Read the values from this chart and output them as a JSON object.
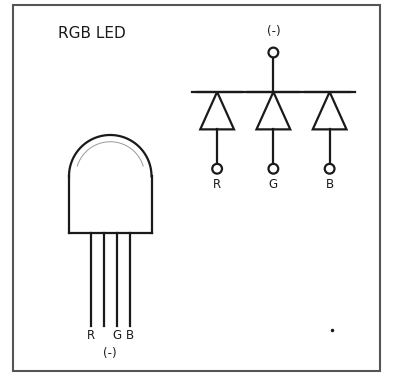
{
  "bg_color": "#ffffff",
  "border_color": "#555555",
  "line_color": "#1a1a1a",
  "title": "RGB LED",
  "label_minus_led": "(-)",
  "labels_rgb_bottom_led": [
    "R",
    "G",
    "B"
  ],
  "labels_rgb_schematic": [
    "R",
    "G",
    "B"
  ],
  "schematic_minus": "(-)",
  "figsize": [
    3.93,
    3.75
  ],
  "dpi": 100
}
